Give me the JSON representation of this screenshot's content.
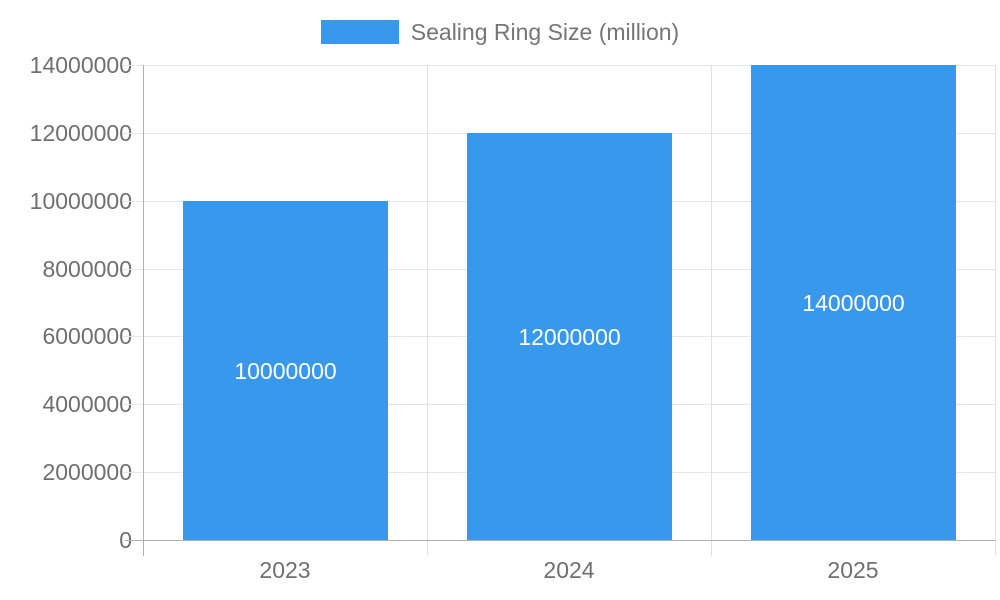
{
  "chart_data": {
    "type": "bar",
    "title": "Sealing Ring Size (million)",
    "categories": [
      "2023",
      "2024",
      "2025"
    ],
    "values": [
      10000000,
      12000000,
      14000000
    ],
    "bar_value_labels": [
      "10000000",
      "12000000",
      "14000000"
    ],
    "y_ticks": [
      0,
      2000000,
      4000000,
      6000000,
      8000000,
      10000000,
      12000000,
      14000000
    ],
    "y_tick_labels": [
      "0",
      "2000000",
      "4000000",
      "6000000",
      "8000000",
      "10000000",
      "12000000",
      "14000000"
    ],
    "ylim": [
      0,
      14000000
    ],
    "xlabel": "",
    "ylabel": "",
    "grid": true,
    "legend_position": "top-center",
    "colors": {
      "bar": "#3898ec",
      "grid_line": "#e6e6e6",
      "boundary_line": "#e0e0e0",
      "axis_line": "#b0b0b0",
      "tick_label_text": "#6f6f6f",
      "legend_text": "#757575",
      "data_label_text": "#ffffff",
      "background": "#ffffff"
    }
  }
}
